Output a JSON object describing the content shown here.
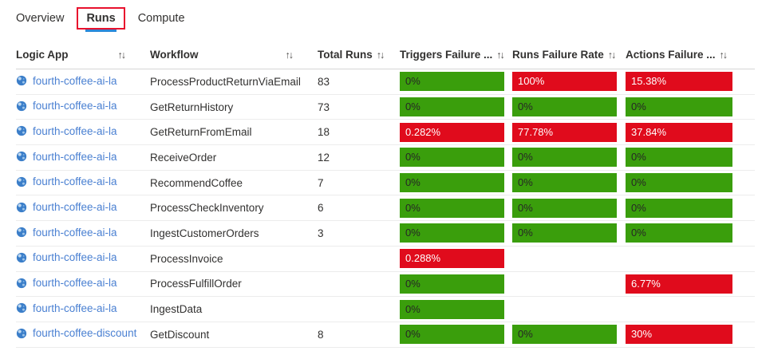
{
  "tabs": [
    {
      "label": "Overview",
      "active": false
    },
    {
      "label": "Runs",
      "active": true,
      "annotated": true
    },
    {
      "label": "Compute",
      "active": false
    }
  ],
  "colors": {
    "badge_green": "#3a9e0c",
    "badge_red": "#e00b1c",
    "link_blue": "#4a80d2",
    "tab_underline": "#2b88d8",
    "annotation_red": "#e8112d"
  },
  "table": {
    "sort_glyph": "↑↓",
    "columns": [
      {
        "label": "Logic App"
      },
      {
        "label": "Workflow"
      },
      {
        "label": "Total Runs"
      },
      {
        "label": "Triggers Failure ..."
      },
      {
        "label": "Runs Failure Rate"
      },
      {
        "label": "Actions Failure ..."
      }
    ],
    "rows": [
      {
        "logic_app": "fourth-coffee-ai-la",
        "workflow": "ProcessProductReturnViaEmail",
        "total_runs": "83",
        "triggers_failure": {
          "value": "0%",
          "status": "good"
        },
        "runs_failure": {
          "value": "100%",
          "status": "bad"
        },
        "actions_failure": {
          "value": "15.38%",
          "status": "bad"
        }
      },
      {
        "logic_app": "fourth-coffee-ai-la",
        "workflow": "GetReturnHistory",
        "total_runs": "73",
        "triggers_failure": {
          "value": "0%",
          "status": "good"
        },
        "runs_failure": {
          "value": "0%",
          "status": "good"
        },
        "actions_failure": {
          "value": "0%",
          "status": "good"
        }
      },
      {
        "logic_app": "fourth-coffee-ai-la",
        "workflow": "GetReturnFromEmail",
        "total_runs": "18",
        "triggers_failure": {
          "value": "0.282%",
          "status": "bad"
        },
        "runs_failure": {
          "value": "77.78%",
          "status": "bad"
        },
        "actions_failure": {
          "value": "37.84%",
          "status": "bad"
        }
      },
      {
        "logic_app": "fourth-coffee-ai-la",
        "workflow": "ReceiveOrder",
        "total_runs": "12",
        "triggers_failure": {
          "value": "0%",
          "status": "good"
        },
        "runs_failure": {
          "value": "0%",
          "status": "good"
        },
        "actions_failure": {
          "value": "0%",
          "status": "good"
        }
      },
      {
        "logic_app": "fourth-coffee-ai-la",
        "workflow": "RecommendCoffee",
        "total_runs": "7",
        "triggers_failure": {
          "value": "0%",
          "status": "good"
        },
        "runs_failure": {
          "value": "0%",
          "status": "good"
        },
        "actions_failure": {
          "value": "0%",
          "status": "good"
        }
      },
      {
        "logic_app": "fourth-coffee-ai-la",
        "workflow": "ProcessCheckInventory",
        "total_runs": "6",
        "triggers_failure": {
          "value": "0%",
          "status": "good"
        },
        "runs_failure": {
          "value": "0%",
          "status": "good"
        },
        "actions_failure": {
          "value": "0%",
          "status": "good"
        }
      },
      {
        "logic_app": "fourth-coffee-ai-la",
        "workflow": "IngestCustomerOrders",
        "total_runs": "3",
        "triggers_failure": {
          "value": "0%",
          "status": "good"
        },
        "runs_failure": {
          "value": "0%",
          "status": "good"
        },
        "actions_failure": {
          "value": "0%",
          "status": "good"
        }
      },
      {
        "logic_app": "fourth-coffee-ai-la",
        "workflow": "ProcessInvoice",
        "total_runs": "",
        "triggers_failure": {
          "value": "0.288%",
          "status": "bad"
        },
        "runs_failure": null,
        "actions_failure": null
      },
      {
        "logic_app": "fourth-coffee-ai-la",
        "workflow": "ProcessFulfillOrder",
        "total_runs": "",
        "triggers_failure": {
          "value": "0%",
          "status": "good"
        },
        "runs_failure": null,
        "actions_failure": {
          "value": "6.77%",
          "status": "bad"
        }
      },
      {
        "logic_app": "fourth-coffee-ai-la",
        "workflow": "IngestData",
        "total_runs": "",
        "triggers_failure": {
          "value": "0%",
          "status": "good"
        },
        "runs_failure": null,
        "actions_failure": null
      },
      {
        "logic_app": "fourth-coffee-discount",
        "workflow": "GetDiscount",
        "total_runs": "8",
        "triggers_failure": {
          "value": "0%",
          "status": "good"
        },
        "runs_failure": {
          "value": "0%",
          "status": "good"
        },
        "actions_failure": {
          "value": "30%",
          "status": "bad"
        }
      }
    ]
  }
}
